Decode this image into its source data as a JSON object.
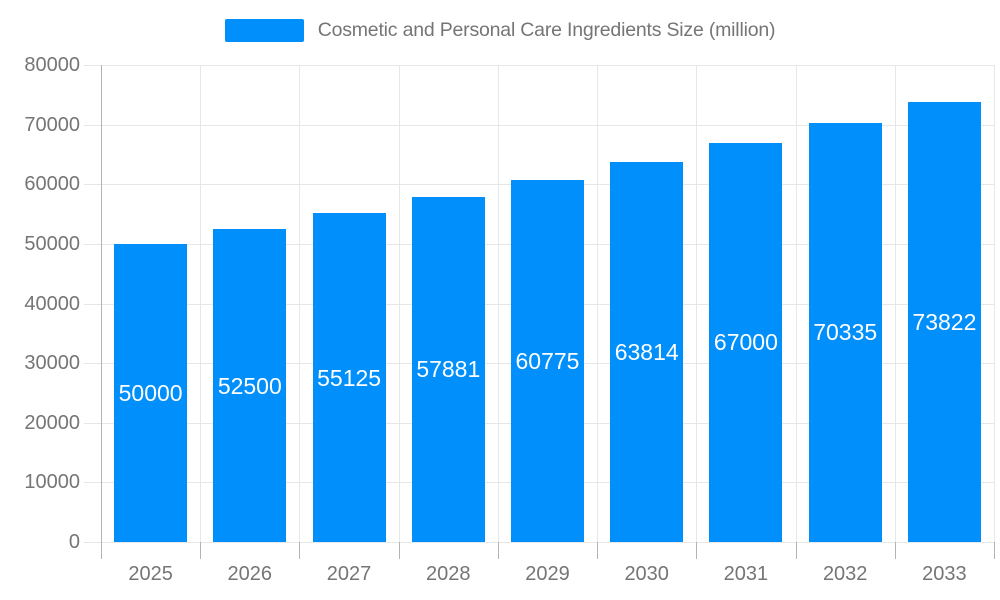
{
  "chart_data": {
    "type": "bar",
    "title": "Cosmetic and Personal Care Ingredients Size (million)",
    "legend_position": "top",
    "categories": [
      "2025",
      "2026",
      "2027",
      "2028",
      "2029",
      "2030",
      "2031",
      "2032",
      "2033"
    ],
    "series": [
      {
        "name": "Cosmetic and Personal Care Ingredients Size (million)",
        "values": [
          50000,
          52500,
          55125,
          57881,
          60775,
          63814,
          67000,
          70335,
          73822
        ]
      }
    ],
    "value_labels": [
      "50000",
      "52500",
      "55125",
      "57881",
      "60775",
      "63814",
      "67000",
      "70335",
      "73822"
    ],
    "xlabel": "",
    "ylabel": "",
    "ylim": [
      0,
      80000
    ],
    "y_ticks": [
      0,
      10000,
      20000,
      30000,
      40000,
      50000,
      60000,
      70000,
      80000
    ],
    "y_tick_labels": [
      "0",
      "10000",
      "20000",
      "30000",
      "40000",
      "50000",
      "60000",
      "70000",
      "80000"
    ],
    "grid": true,
    "colors": {
      "bar": "#008FFB",
      "bar_value_text": "#ffffff",
      "axis_text": "#757575",
      "legend_text": "#757575",
      "gridline": "#e7e7e7",
      "axis_line": "#b3b3b3",
      "background": "#ffffff"
    }
  }
}
